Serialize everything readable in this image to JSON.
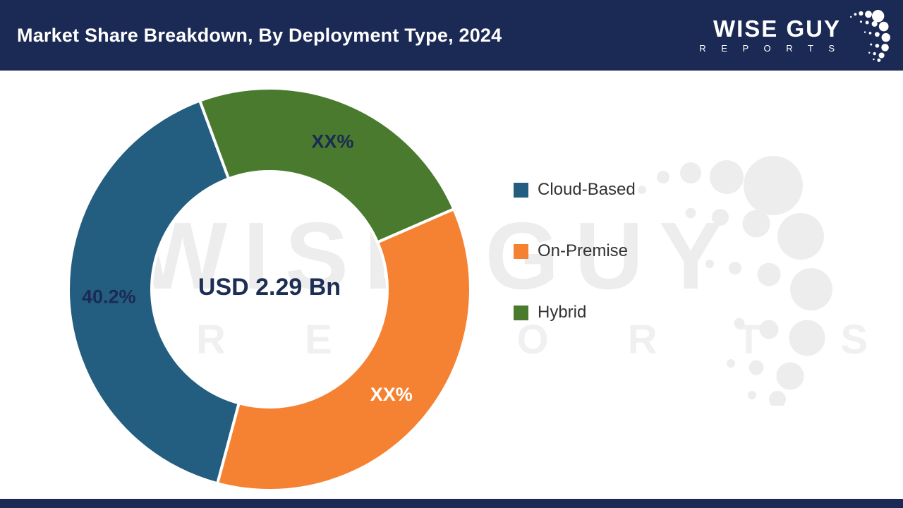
{
  "header": {
    "title": "Market Share Breakdown, By Deployment Type, 2024",
    "logo_line1": "WISE GUY",
    "logo_line2": "R E P O R T S"
  },
  "colors": {
    "brand_navy": "#1b2a55",
    "cloud_based_blue": "#235e80",
    "on_premise_orange": "#f58233",
    "hybrid_green": "#4a7a2d"
  },
  "watermark": {
    "line1": "WISE GUY",
    "line2": "R E P O R T S"
  },
  "chart_data": {
    "type": "pie",
    "subtype": "donut",
    "title": "Market Share Breakdown, By Deployment Type, 2024",
    "center_label": "USD 2.29 Bn",
    "start_angle_deg": 195,
    "outer_radius": 285,
    "inner_radius": 167,
    "label_radius": 228,
    "segments": [
      {
        "label": "Cloud-Based",
        "value": 40.2,
        "display": "40.2%",
        "color": "#235e80",
        "label_color": "#1b2a55"
      },
      {
        "label": "Hybrid",
        "value": 24.1,
        "display": "XX%",
        "color": "#4a7a2d",
        "label_color": "#1b2a55"
      },
      {
        "label": "On-Premise",
        "value": 35.7,
        "display": "XX%",
        "color": "#f58233",
        "label_color": "#ffffff"
      }
    ],
    "legend": [
      {
        "label": "Cloud-Based",
        "color": "#235e80"
      },
      {
        "label": "On-Premise",
        "color": "#f58233"
      },
      {
        "label": "Hybrid",
        "color": "#4a7a2d"
      }
    ],
    "legend_position": "right"
  }
}
